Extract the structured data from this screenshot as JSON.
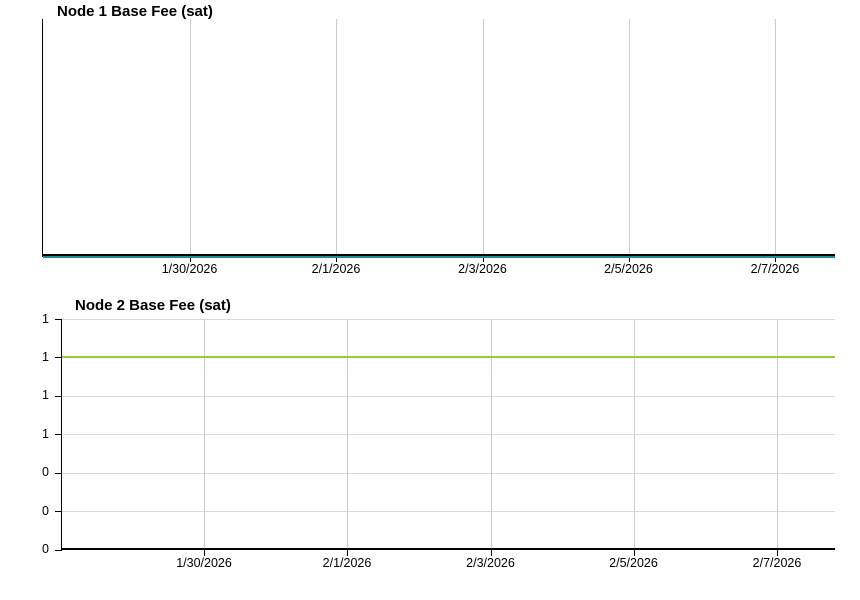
{
  "page": {
    "background": "#ffffff"
  },
  "colors": {
    "text": "#000000",
    "axis": "#000000",
    "gridline_vertical": "#cccccc",
    "gridline_horizontal": "#d9d9d9",
    "node1_line": "#1f8a99",
    "node2_line": "#9ccb38"
  },
  "chart_data": [
    {
      "type": "line",
      "title": "Node 1 Base Fee (sat)",
      "categories": [
        "1/30/2026",
        "2/1/2026",
        "2/3/2026",
        "2/5/2026",
        "2/7/2026"
      ],
      "series": [
        {
          "name": "Node 1 Base Fee (sat)",
          "color": "#1f8a99",
          "values": [
            1,
            1,
            1,
            1,
            1
          ]
        }
      ],
      "xlabel": "",
      "ylabel": "",
      "y_tick_labels": [],
      "grid": {
        "vertical": true,
        "horizontal": false
      },
      "legend": "none",
      "line_position": "plot-bottom"
    },
    {
      "type": "line",
      "title": "Node 2 Base Fee (sat)",
      "categories": [
        "1/30/2026",
        "2/1/2026",
        "2/3/2026",
        "2/5/2026",
        "2/7/2026"
      ],
      "series": [
        {
          "name": "Node 2 Base Fee (sat)",
          "color": "#9ccb38",
          "values": [
            1,
            1,
            1,
            1,
            1
          ]
        }
      ],
      "xlabel": "",
      "ylabel": "",
      "ylim": [
        0,
        1.2
      ],
      "y_tick_labels": [
        "1",
        "1",
        "1",
        "1",
        "0",
        "0",
        "0"
      ],
      "grid": {
        "vertical": true,
        "horizontal": true
      },
      "legend": "none",
      "line_position": "tick-index",
      "line_at_tick_index": 1
    }
  ]
}
